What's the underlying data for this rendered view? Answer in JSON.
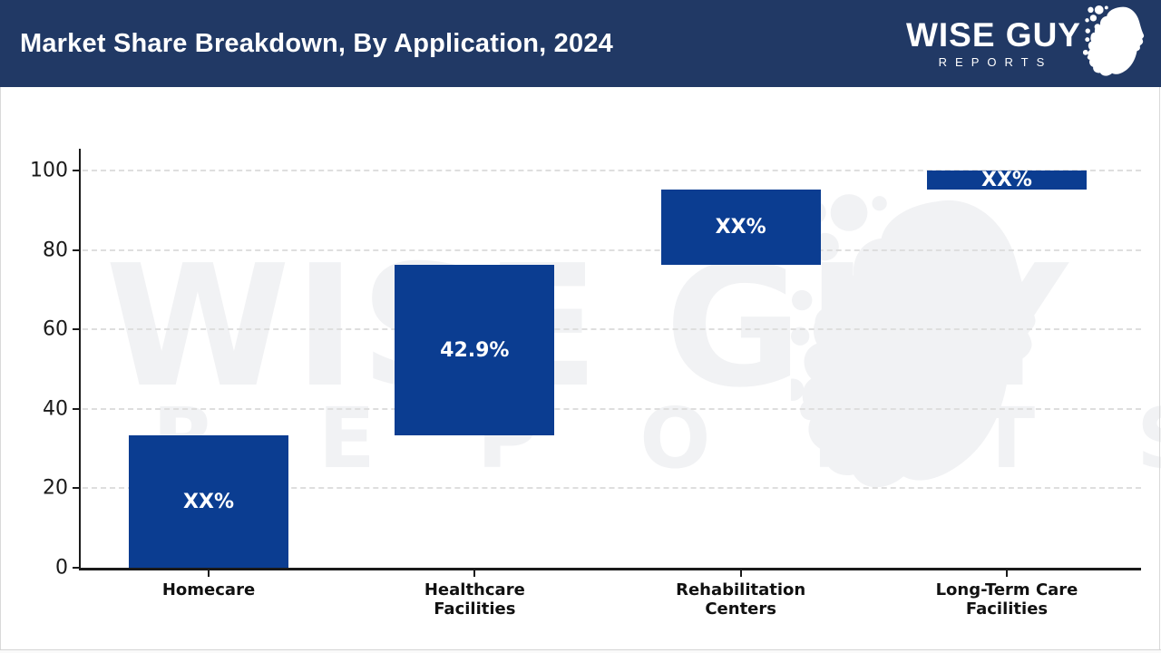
{
  "header": {
    "title": "Market Share Breakdown, By Application, 2024"
  },
  "logo": {
    "wordmark": "WISE GUY",
    "subtext": "REPORTS"
  },
  "watermark": {
    "wordmark": "WISE GUY",
    "subtext": "R E P O R T S"
  },
  "colors": {
    "header_bg": "#213965",
    "bar": "#0b3d91",
    "axis": "#1a1a1a",
    "grid": "#dedede",
    "watermark": "#f1f2f4",
    "label_on_bar": "#ffffff",
    "label_off_bar": "#111111"
  },
  "chart_data": {
    "type": "bar",
    "subtype": "waterfall",
    "title": "Market Share Breakdown, By Application, 2024",
    "xlabel": "",
    "ylabel": "",
    "ylim": [
      0,
      105
    ],
    "yticks": [
      0,
      20,
      40,
      60,
      80,
      100
    ],
    "grid": "horizontal-dashed",
    "legend": "none",
    "categories": [
      "Homecare",
      "Healthcare Facilities",
      "Rehabilitation Centers",
      "Long-Term Care Facilities"
    ],
    "category_label_lines": [
      [
        "Homecare"
      ],
      [
        "Healthcare",
        "Facilities"
      ],
      [
        "Rehabilitation",
        "Centers"
      ],
      [
        "Long-Term Care",
        "Facilities"
      ]
    ],
    "segments": [
      {
        "category": "Homecare",
        "start": 0,
        "end": 33.3,
        "label": "XX%",
        "value_shown": "XX%"
      },
      {
        "category": "Healthcare Facilities",
        "start": 33.3,
        "end": 76.2,
        "label": "42.9%",
        "value_shown": "42.9%",
        "value": 42.9
      },
      {
        "category": "Rehabilitation Centers",
        "start": 76.2,
        "end": 95.2,
        "label": "XX%",
        "value_shown": "XX%"
      },
      {
        "category": "Long-Term Care Facilities",
        "start": 95.2,
        "end": 100,
        "label": "XX%",
        "value_shown": "XX%"
      }
    ]
  }
}
